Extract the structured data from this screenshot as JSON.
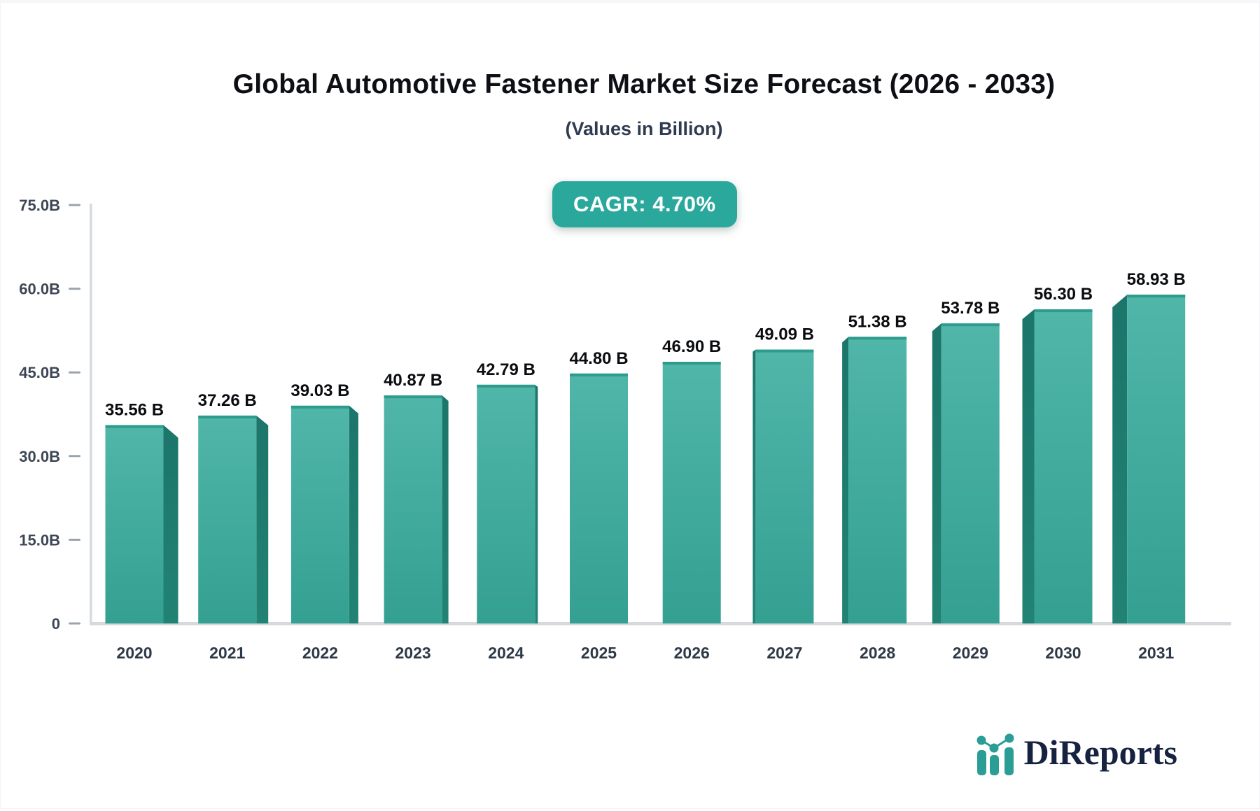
{
  "header": {
    "title": "Global Automotive Fastener Market Size Forecast (2026 - 2033)",
    "subtitle": "(Values in Billion)",
    "cagr_label": "CAGR: 4.70%"
  },
  "chart_data": {
    "type": "bar",
    "title": "Global Automotive Fastener Market Size Forecast (2026 - 2033)",
    "subtitle": "(Values in Billion)",
    "annotation": "CAGR: 4.70%",
    "categories": [
      "2020",
      "2021",
      "2022",
      "2023",
      "2024",
      "2025",
      "2026",
      "2027",
      "2028",
      "2029",
      "2030",
      "2031"
    ],
    "values": [
      35.56,
      37.26,
      39.03,
      40.87,
      42.79,
      44.8,
      46.9,
      49.09,
      51.38,
      53.78,
      56.3,
      58.93
    ],
    "value_labels": [
      "35.56 B",
      "37.26 B",
      "39.03 B",
      "40.87 B",
      "42.79 B",
      "44.80 B",
      "46.90 B",
      "49.09 B",
      "51.38 B",
      "53.78 B",
      "56.30 B",
      "58.93 B"
    ],
    "unit": "Billion",
    "xlabel": "",
    "ylabel": "",
    "ylim": [
      0,
      75
    ],
    "ytick_values": [
      75,
      60,
      45,
      30,
      15,
      0
    ],
    "ytick_labels": [
      "75.0B",
      "60.0B",
      "45.0B",
      "30.0B",
      "15.0B",
      "0"
    ],
    "grid": false,
    "legend": "none",
    "style": "3d-perspective-bars"
  },
  "colors": {
    "bar_face_top": "#50b6a9",
    "bar_face_bottom": "#34a092",
    "bar_side_top": "#1c756a",
    "bar_side_bottom": "#218374",
    "bar_top_edge": "#2d9b8d",
    "badge_bg": "#2aa89c",
    "badge_text": "#ffffff",
    "axis_line": "#d6d9de",
    "tick_dash": "#9ba3ad",
    "ytick_text": "#3d4654",
    "xtick_text": "#2e3948",
    "value_text": "#0a0c10",
    "title_text": "#0d0f14",
    "subtitle_text": "#2f3b50",
    "logo_navy": "#162340",
    "logo_teal": "#2a9d94"
  },
  "footer": {
    "brand": "DiReports"
  }
}
